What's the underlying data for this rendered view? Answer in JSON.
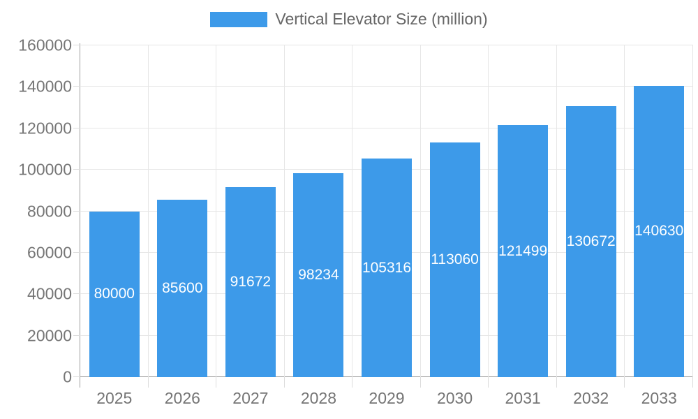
{
  "legend": {
    "label": "Vertical Elevator Size (million)"
  },
  "chart_data": {
    "type": "bar",
    "title": "Vertical Elevator Size (million)",
    "xlabel": "",
    "ylabel": "",
    "categories": [
      "2025",
      "2026",
      "2027",
      "2028",
      "2029",
      "2030",
      "2031",
      "2032",
      "2033"
    ],
    "values": [
      80000,
      85600,
      91672,
      98234,
      105316,
      113060,
      121499,
      130672,
      140630
    ],
    "value_labels": [
      "80000",
      "85600",
      "91672",
      "98234",
      "105316",
      "113060",
      "121499",
      "130672",
      "140630"
    ],
    "ylim": [
      0,
      160000
    ],
    "ytick_step": 20000,
    "ytick_labels": [
      "0",
      "20000",
      "40000",
      "60000",
      "80000",
      "100000",
      "120000",
      "140000",
      "160000"
    ],
    "grid": true,
    "legend_position": "top",
    "colors": {
      "bar": "#3D9AE9",
      "grid": "#E6E6E6",
      "axis_line": "#9E9E9E",
      "tick": "#DCDCDC",
      "axis_text": "#757575",
      "legend_text": "#666666",
      "value_text": "#FFFFFF"
    }
  }
}
